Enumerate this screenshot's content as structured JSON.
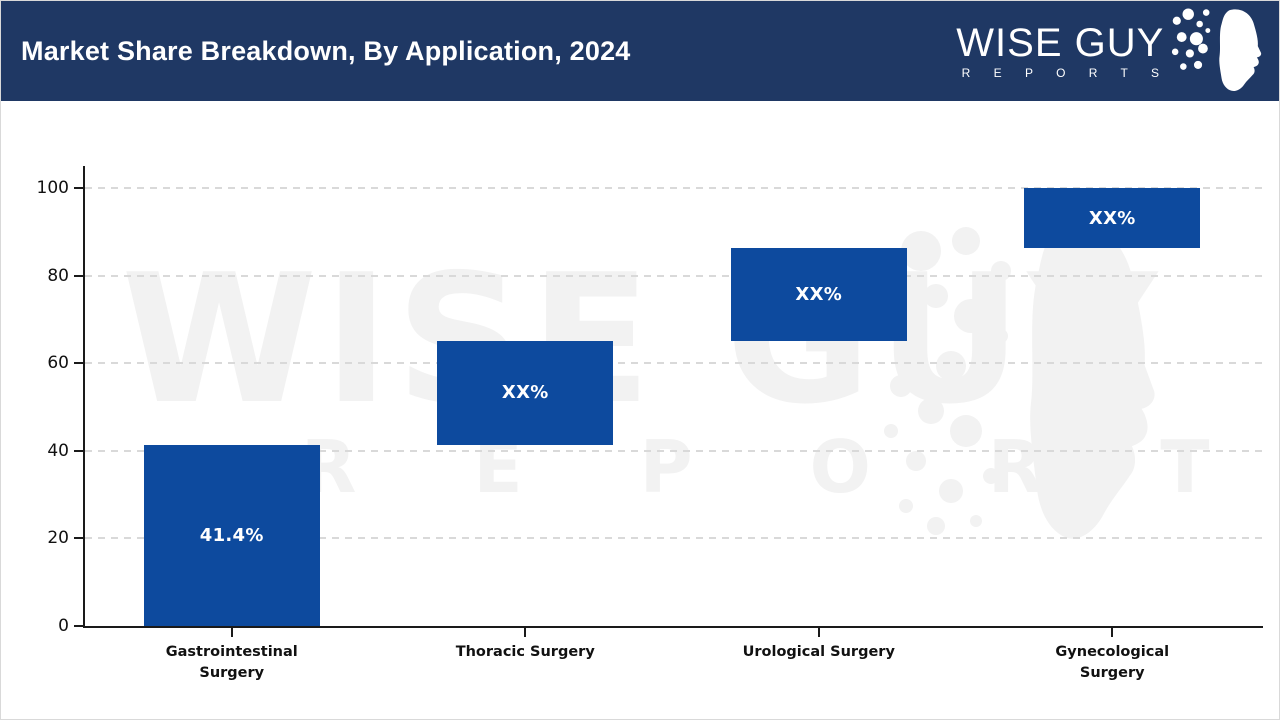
{
  "header": {
    "title": "Market Share Breakdown, By Application, 2024",
    "logo": {
      "line1": "WISE GUY",
      "line2": "R E P O R T S"
    }
  },
  "watermark": {
    "line1": "WISE GUY",
    "line2": "R E P O R T S"
  },
  "colors": {
    "header_bg": "#1f3864",
    "bar": "#0d4a9e",
    "grid": "#d9d9d9",
    "axis": "#1a1a1a",
    "watermark": "#f2f2f2",
    "bar_label_text": "#ffffff"
  },
  "chart_data": {
    "type": "bar",
    "subtype": "waterfall",
    "title": "Market Share Breakdown, By Application, 2024",
    "xlabel": "",
    "ylabel": "",
    "ylim": [
      0,
      105
    ],
    "yticks": [
      0,
      20,
      40,
      60,
      80,
      100
    ],
    "grid": "horizontal-dashed",
    "legend": "none",
    "categories": [
      "Gastrointestinal Surgery",
      "Thoracic Surgery",
      "Urological Surgery",
      "Gynecological Surgery"
    ],
    "category_lines": [
      "Gastrointestinal\nSurgery",
      "Thoracic Surgery",
      "Urological Surgery",
      "Gynecological\nSurgery"
    ],
    "segments": [
      {
        "category": "Gastrointestinal Surgery",
        "start": 0,
        "end": 41.4,
        "increment": 41.4,
        "label": "41.4%"
      },
      {
        "category": "Thoracic Surgery",
        "start": 41.4,
        "end": 65.0,
        "increment": 23.6,
        "label": "XX%"
      },
      {
        "category": "Urological Surgery",
        "start": 65.0,
        "end": 86.3,
        "increment": 21.3,
        "label": "XX%"
      },
      {
        "category": "Gynecological Surgery",
        "start": 86.3,
        "end": 100,
        "increment": 13.7,
        "label": "XX%"
      }
    ]
  }
}
